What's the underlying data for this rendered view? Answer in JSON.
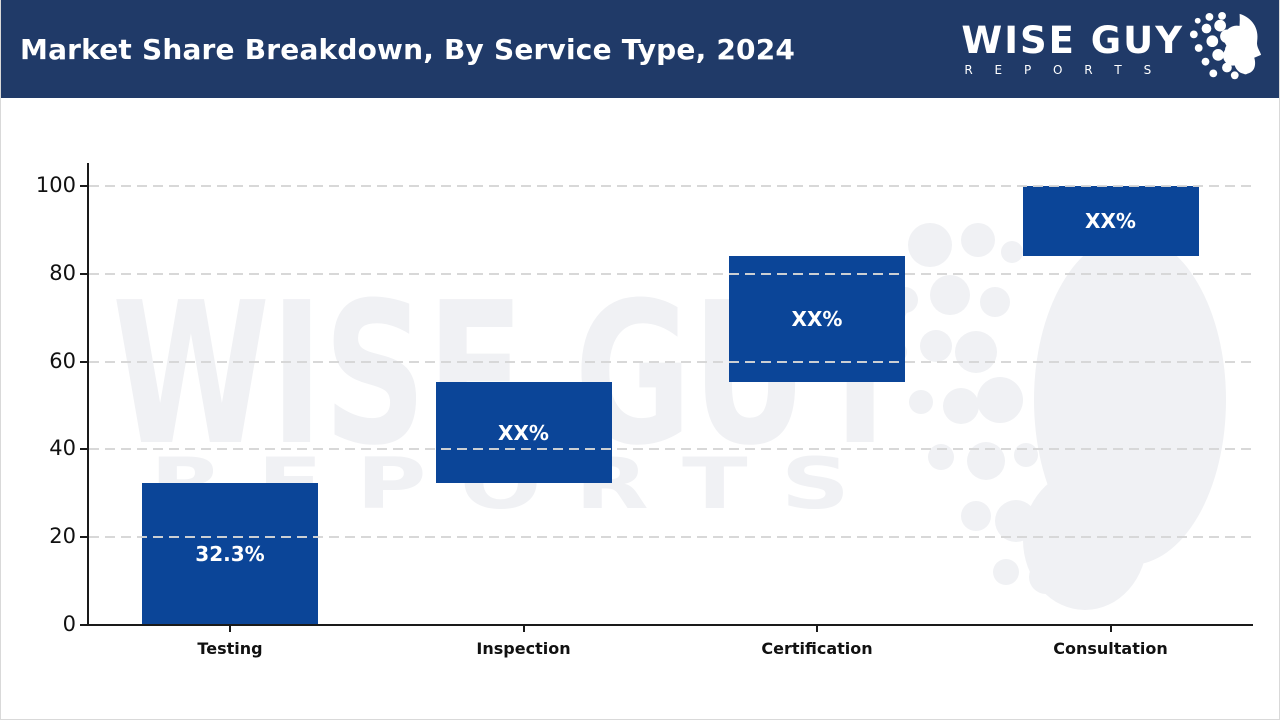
{
  "header": {
    "title": "Market Share Breakdown, By Service Type, 2024",
    "logo": {
      "line1": "WISE GUY",
      "line2": "R E P O R T S"
    }
  },
  "watermark": {
    "line1": "WISE GUY",
    "line2": "R E P O R T S"
  },
  "chart_data": {
    "type": "bar",
    "subtype": "waterfall",
    "title": "Market Share Breakdown, By Service Type, 2024",
    "categories": [
      "Testing",
      "Inspection",
      "Certification",
      "Consultation"
    ],
    "segments": [
      {
        "category": "Testing",
        "start": 0,
        "end": 32.3,
        "label": "32.3%"
      },
      {
        "category": "Inspection",
        "start": 32.3,
        "end": 55.3,
        "label": "XX%"
      },
      {
        "category": "Certification",
        "start": 55.3,
        "end": 84.0,
        "label": "XX%"
      },
      {
        "category": "Consultation",
        "start": 84.0,
        "end": 100.0,
        "label": "XX%"
      }
    ],
    "ylim": [
      0,
      100
    ],
    "yticks": [
      0,
      20,
      40,
      60,
      80,
      100
    ],
    "xlabel": "",
    "ylabel": "",
    "grid": "horizontal-dashed",
    "legend": "none",
    "colors": {
      "bar": "#0b4598",
      "bar_label": "#ffffff",
      "grid": "#d6d6d6",
      "axis": "#1a1a1a",
      "header_bg": "#203a68",
      "watermark": "#f0f1f4"
    }
  }
}
